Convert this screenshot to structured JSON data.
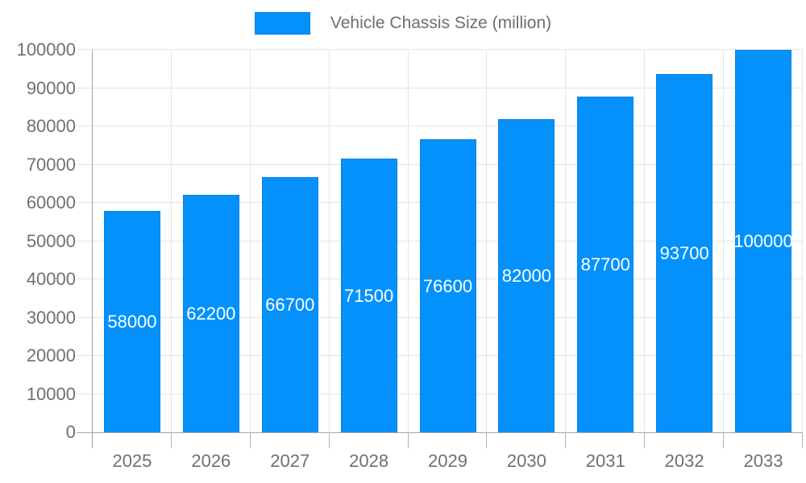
{
  "chart_data": {
    "type": "bar",
    "title": "",
    "legend": {
      "label": "Vehicle Chassis Size (million)",
      "position": "top"
    },
    "categories": [
      "2025",
      "2026",
      "2027",
      "2028",
      "2029",
      "2030",
      "2031",
      "2032",
      "2033"
    ],
    "series": [
      {
        "name": "Vehicle Chassis Size (million)",
        "values": [
          58000,
          62200,
          66700,
          71500,
          76600,
          82000,
          87700,
          93700,
          100000
        ]
      }
    ],
    "bar_value_labels": [
      "58000",
      "62200",
      "66700",
      "71500",
      "76600",
      "82000",
      "87700",
      "93700",
      "100000"
    ],
    "xlabel": "",
    "ylabel": "",
    "ylim": [
      0,
      100000
    ],
    "y_ticks": [
      0,
      10000,
      20000,
      30000,
      40000,
      50000,
      60000,
      70000,
      80000,
      90000,
      100000
    ],
    "y_tick_labels": [
      "0",
      "10000",
      "20000",
      "30000",
      "40000",
      "50000",
      "60000",
      "70000",
      "80000",
      "90000",
      "100000"
    ],
    "grid": true,
    "bar_labels_visible": true,
    "bar_label_position": "center-inside"
  },
  "colors": {
    "bar_fill": "#0591fb",
    "bar_border": "#0583e2",
    "grid_line": "#e5e5e5",
    "axis_line": "#a6a6a6",
    "boundary_tick": "#b3b3b3",
    "tick_text": "#707070",
    "legend_text": "#6e6e6e",
    "bar_label_text": "#ffffff",
    "background": "#ffffff"
  }
}
